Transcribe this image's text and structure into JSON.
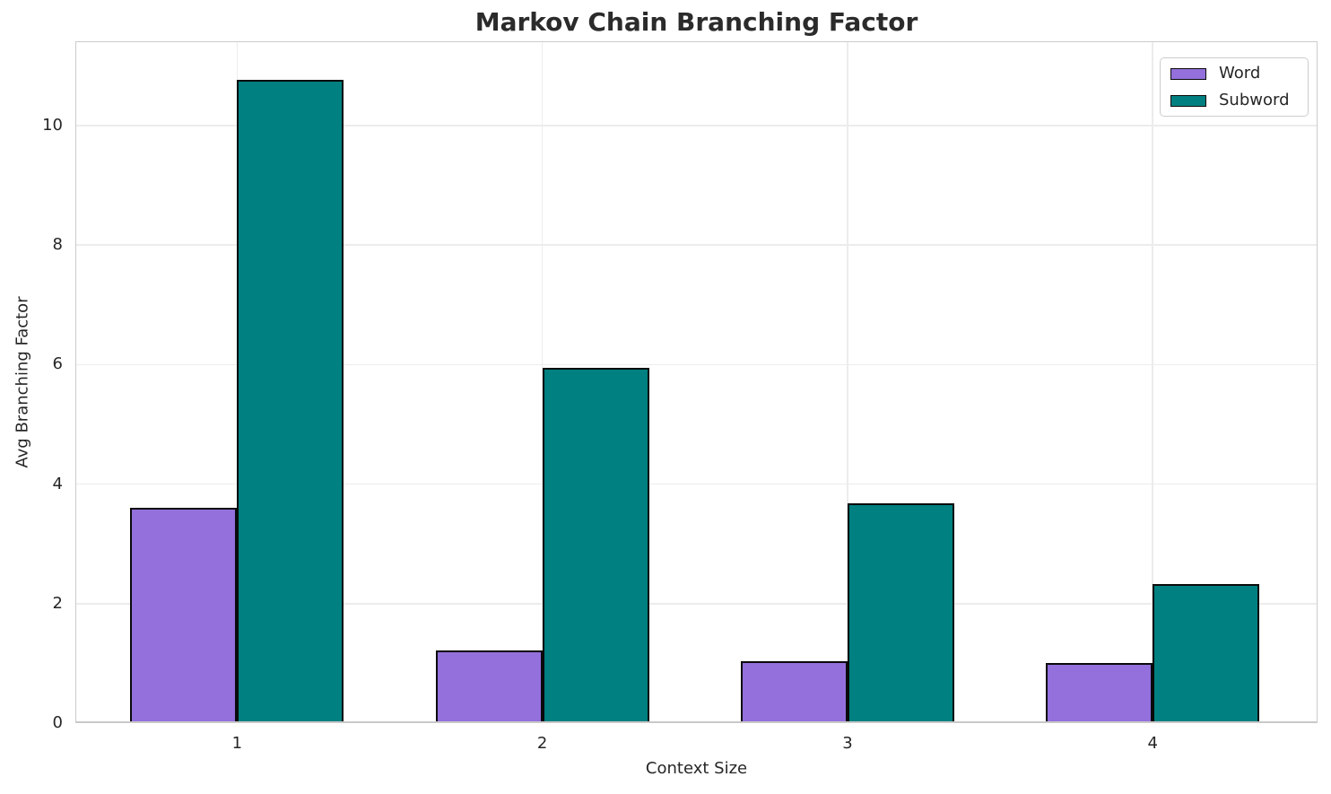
{
  "chart_data": {
    "type": "bar",
    "title": "Markov Chain Branching Factor",
    "xlabel": "Context Size",
    "ylabel": "Avg Branching Factor",
    "categories": [
      "1",
      "2",
      "3",
      "4"
    ],
    "series": [
      {
        "name": "Word",
        "color": "#9370DB",
        "values": [
          3.61,
          1.21,
          1.03,
          1.0
        ]
      },
      {
        "name": "Subword",
        "color": "#008080",
        "values": [
          10.77,
          5.94,
          3.68,
          2.33
        ]
      }
    ],
    "y_ticks": [
      "0",
      "2",
      "4",
      "6",
      "8",
      "10"
    ],
    "ylim": [
      0,
      11.41
    ],
    "xlim": [
      0.47,
      4.54
    ],
    "bar_width_units": 0.35,
    "bar_edge_color": "#0a0a0a",
    "grid": true,
    "gridline_color": "#ececec",
    "legend_position": "upper right",
    "text_color": "#262626",
    "title_color": "#2b2b2b",
    "background_color": "#ffffff"
  }
}
